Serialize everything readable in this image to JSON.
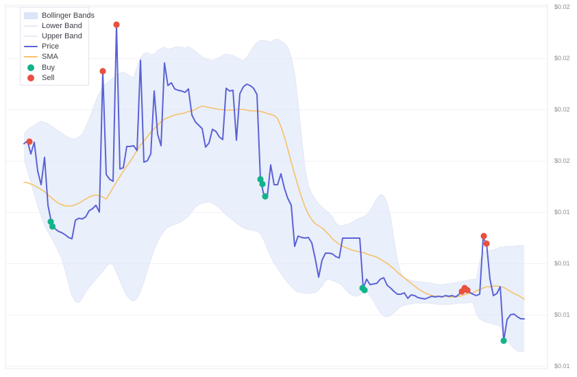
{
  "legend": {
    "items": [
      {
        "label": "Bollinger Bands",
        "swatch": "patch",
        "color": "#dbe5f8"
      },
      {
        "label": "Lower Band",
        "swatch": "line",
        "color": "#e7e9f3"
      },
      {
        "label": "Upper Band",
        "swatch": "line",
        "color": "#e7e9f3"
      },
      {
        "label": "Price",
        "swatch": "line",
        "color": "#5a61d4"
      },
      {
        "label": "SMA",
        "swatch": "line",
        "color": "#f7c065"
      },
      {
        "label": "Buy",
        "swatch": "dot",
        "color": "#13b389"
      },
      {
        "label": "Sell",
        "swatch": "dot",
        "color": "#e8503f"
      }
    ]
  },
  "y_axis": {
    "tick_values": [
      0.0225,
      0.02,
      0.0175,
      0.015,
      0.0125,
      0.01,
      0.0075,
      0.005
    ],
    "tick_labels": [
      "$0.02",
      "$0.02",
      "$0.02",
      "$0.02",
      "$0.01",
      "$0.01",
      "$0.01",
      "$0.01"
    ]
  },
  "colors": {
    "price": "#5a61d4",
    "sma": "#f7c065",
    "band_fill": "#dbe5f8",
    "band_edge": "#e3e7f4",
    "buy": "#13b389",
    "sell": "#e8503f",
    "grid": "#f2f2f7",
    "frame": "#e8e8ef",
    "tick_text": "#8b8b95"
  },
  "chart_data": {
    "type": "line",
    "title": "",
    "xlabel": "",
    "ylabel": "",
    "grid": true,
    "legend_position": "top-left",
    "xlim": [
      0,
      146
    ],
    "ylim": [
      0.0048833,
      0.0225833
    ],
    "series": [
      {
        "name": "Price",
        "values": [
          0.01585,
          0.015983,
          0.01535,
          0.015917,
          0.014517,
          0.01385,
          0.015183,
          0.01285,
          0.012017,
          0.011717,
          0.011583,
          0.011517,
          0.011417,
          0.011283,
          0.011217,
          0.012117,
          0.012217,
          0.012183,
          0.012283,
          0.012583,
          0.012683,
          0.01285,
          0.012517,
          0.019383,
          0.01435,
          0.014117,
          0.014017,
          0.02165,
          0.014617,
          0.014683,
          0.015717,
          0.015717,
          0.01575,
          0.015517,
          0.019917,
          0.01495,
          0.015017,
          0.01535,
          0.018417,
          0.016317,
          0.01575,
          0.019783,
          0.018683,
          0.018817,
          0.018517,
          0.01845,
          0.018417,
          0.01835,
          0.018517,
          0.01725,
          0.016917,
          0.01675,
          0.016583,
          0.015683,
          0.015883,
          0.01655,
          0.01645,
          0.016183,
          0.01605,
          0.01855,
          0.018417,
          0.01845,
          0.016017,
          0.018283,
          0.018617,
          0.01875,
          0.018683,
          0.01855,
          0.01825,
          0.014117,
          0.01335,
          0.01325,
          0.014817,
          0.01385,
          0.01385,
          0.014383,
          0.013683,
          0.013183,
          0.01285,
          0.01085,
          0.01135,
          0.011283,
          0.01125,
          0.011283,
          0.011017,
          0.01025,
          0.00935,
          0.010183,
          0.010517,
          0.010517,
          0.010483,
          0.01035,
          0.010283,
          0.01125,
          0.01125,
          0.01125,
          0.01125,
          0.01125,
          0.01125,
          0.008817,
          0.00925,
          0.008983,
          0.009017,
          0.00905,
          0.00925,
          0.009317,
          0.00895,
          0.008817,
          0.00865,
          0.008517,
          0.008517,
          0.008583,
          0.008317,
          0.008483,
          0.00845,
          0.00835,
          0.008317,
          0.008283,
          0.00835,
          0.008417,
          0.008383,
          0.008417,
          0.008383,
          0.00845,
          0.008417,
          0.00845,
          0.008383,
          0.008517,
          0.008717,
          0.00875,
          0.008617,
          0.008517,
          0.00845,
          0.008517,
          0.01125,
          0.010983,
          0.00925,
          0.00845,
          0.00855,
          0.008883,
          0.00625,
          0.007283,
          0.007517,
          0.00755,
          0.007417,
          0.007317,
          0.007317
        ]
      },
      {
        "name": "SMA",
        "values": [
          0.013983,
          0.01395,
          0.013883,
          0.013817,
          0.013717,
          0.013617,
          0.013517,
          0.01335,
          0.013217,
          0.013083,
          0.01295,
          0.012883,
          0.012817,
          0.012817,
          0.012817,
          0.012883,
          0.01295,
          0.01305,
          0.01315,
          0.01325,
          0.013317,
          0.01335,
          0.013317,
          0.01325,
          0.01315,
          0.013417,
          0.013717,
          0.013983,
          0.01425,
          0.014517,
          0.01475,
          0.014983,
          0.01525,
          0.015517,
          0.015783,
          0.015983,
          0.016183,
          0.016417,
          0.016583,
          0.01675,
          0.016917,
          0.01705,
          0.017117,
          0.017183,
          0.01725,
          0.017283,
          0.017317,
          0.01735,
          0.017417,
          0.01745,
          0.017517,
          0.017617,
          0.017683,
          0.01765,
          0.017617,
          0.017583,
          0.01755,
          0.017517,
          0.017517,
          0.017483,
          0.017483,
          0.017483,
          0.017517,
          0.017517,
          0.017517,
          0.017483,
          0.01745,
          0.01745,
          0.01745,
          0.017417,
          0.017383,
          0.017317,
          0.017283,
          0.017217,
          0.017083,
          0.016683,
          0.016183,
          0.015583,
          0.01495,
          0.01435,
          0.013783,
          0.01325,
          0.012783,
          0.012417,
          0.01215,
          0.01195,
          0.01185,
          0.01175,
          0.011583,
          0.011417,
          0.011217,
          0.011083,
          0.01095,
          0.01085,
          0.010783,
          0.010717,
          0.01065,
          0.010617,
          0.010583,
          0.01055,
          0.010483,
          0.010417,
          0.010383,
          0.010317,
          0.010217,
          0.010117,
          0.010017,
          0.009883,
          0.00975,
          0.009583,
          0.00945,
          0.009317,
          0.009183,
          0.00905,
          0.008917,
          0.008783,
          0.008683,
          0.008583,
          0.008517,
          0.00845,
          0.008417,
          0.008417,
          0.008417,
          0.008417,
          0.008383,
          0.008383,
          0.008383,
          0.008417,
          0.00845,
          0.008517,
          0.00855,
          0.008583,
          0.008683,
          0.00875,
          0.008817,
          0.008883,
          0.008883,
          0.008917,
          0.008917,
          0.008883,
          0.00885,
          0.00875,
          0.00865,
          0.00855,
          0.008483,
          0.008383,
          0.008283
        ]
      },
      {
        "name": "Upper Band",
        "values": [
          0.016317,
          0.016517,
          0.01665,
          0.01675,
          0.01685,
          0.01695,
          0.016883,
          0.016817,
          0.016717,
          0.016583,
          0.016483,
          0.016383,
          0.01625,
          0.01615,
          0.016083,
          0.016083,
          0.016183,
          0.016317,
          0.01665,
          0.01705,
          0.017483,
          0.01795,
          0.018317,
          0.018617,
          0.018783,
          0.018917,
          0.01905,
          0.019217,
          0.019283,
          0.01935,
          0.01925,
          0.01915,
          0.01905,
          0.019583,
          0.02005,
          0.02025,
          0.020283,
          0.020183,
          0.020217,
          0.020383,
          0.020483,
          0.02055,
          0.02045,
          0.020483,
          0.02055,
          0.020583,
          0.02055,
          0.020517,
          0.020583,
          0.020483,
          0.02035,
          0.020217,
          0.020083,
          0.019983,
          0.01995,
          0.019883,
          0.01995,
          0.02005,
          0.02015,
          0.020217,
          0.020183,
          0.02015,
          0.02005,
          0.01995,
          0.019883,
          0.02005,
          0.020317,
          0.020583,
          0.020783,
          0.020883,
          0.020883,
          0.02085,
          0.020783,
          0.020917,
          0.02095,
          0.02085,
          0.02075,
          0.02055,
          0.020083,
          0.01925,
          0.01785,
          0.016183,
          0.014683,
          0.013783,
          0.013417,
          0.01315,
          0.012917,
          0.01275,
          0.012617,
          0.012483,
          0.012283,
          0.011983,
          0.01185,
          0.01185,
          0.011917,
          0.01195,
          0.01205,
          0.01215,
          0.012217,
          0.012283,
          0.012383,
          0.012583,
          0.012883,
          0.013183,
          0.013383,
          0.013317,
          0.01295,
          0.012283,
          0.011183,
          0.01015,
          0.00955,
          0.009317,
          0.00925,
          0.009183,
          0.00915,
          0.009117,
          0.009117,
          0.009083,
          0.009083,
          0.00905,
          0.009017,
          0.008983,
          0.008983,
          0.009017,
          0.009017,
          0.00905,
          0.009083,
          0.009117,
          0.00915,
          0.009183,
          0.009217,
          0.00925,
          0.00925,
          0.010117,
          0.010583,
          0.01065,
          0.01065,
          0.010683,
          0.01075,
          0.010817,
          0.010817,
          0.01085,
          0.01085,
          0.01085,
          0.010883,
          0.010883,
          0.010883
        ]
      },
      {
        "name": "Lower Band",
        "values": [
          0.015117,
          0.01455,
          0.01395,
          0.013383,
          0.012817,
          0.012317,
          0.011883,
          0.01155,
          0.01125,
          0.01095,
          0.010617,
          0.01025,
          0.009683,
          0.009017,
          0.00845,
          0.00815,
          0.008117,
          0.008317,
          0.008617,
          0.00885,
          0.00905,
          0.00925,
          0.00945,
          0.00965,
          0.00985,
          0.010017,
          0.00995,
          0.009583,
          0.009183,
          0.008783,
          0.00845,
          0.00825,
          0.008183,
          0.008317,
          0.00865,
          0.009117,
          0.00965,
          0.010183,
          0.010683,
          0.011083,
          0.011383,
          0.011617,
          0.011783,
          0.01185,
          0.011917,
          0.011983,
          0.01205,
          0.012183,
          0.012317,
          0.01255,
          0.01275,
          0.012883,
          0.01295,
          0.012983,
          0.013017,
          0.01295,
          0.01285,
          0.012717,
          0.01255,
          0.012383,
          0.01225,
          0.012117,
          0.011983,
          0.01185,
          0.01175,
          0.011683,
          0.01165,
          0.011617,
          0.011583,
          0.01145,
          0.01115,
          0.01075,
          0.01035,
          0.010017,
          0.009783,
          0.009517,
          0.009283,
          0.009083,
          0.008883,
          0.008717,
          0.008617,
          0.008583,
          0.00855,
          0.00855,
          0.008583,
          0.008583,
          0.008717,
          0.008917,
          0.009183,
          0.00925,
          0.009183,
          0.009117,
          0.00905,
          0.008917,
          0.008717,
          0.00855,
          0.00845,
          0.008417,
          0.008483,
          0.008583,
          0.008617,
          0.00845,
          0.008183,
          0.007883,
          0.007617,
          0.00745,
          0.007417,
          0.007483,
          0.007617,
          0.007783,
          0.007917,
          0.007983,
          0.008017,
          0.00805,
          0.008083,
          0.008083,
          0.008083,
          0.008083,
          0.008083,
          0.00805,
          0.00805,
          0.008017,
          0.008017,
          0.008017,
          0.008017,
          0.00805,
          0.00805,
          0.008083,
          0.008083,
          0.008083,
          0.008117,
          0.008117,
          0.007583,
          0.007317,
          0.007217,
          0.00715,
          0.007117,
          0.00705,
          0.007017,
          0.00695,
          0.006617,
          0.006283,
          0.00605,
          0.005883,
          0.00575,
          0.005717,
          0.00575
        ]
      }
    ],
    "buy_signals": [
      {
        "x": 7.8,
        "y": 0.01205
      },
      {
        "x": 8.3,
        "y": 0.011817
      },
      {
        "x": 69.0,
        "y": 0.014117
      },
      {
        "x": 69.6,
        "y": 0.013883
      },
      {
        "x": 70.4,
        "y": 0.013283
      },
      {
        "x": 98.8,
        "y": 0.008817
      },
      {
        "x": 99.4,
        "y": 0.008717
      },
      {
        "x": 140.0,
        "y": 0.00625
      }
    ],
    "sell_signals": [
      {
        "x": 1.6,
        "y": 0.01595
      },
      {
        "x": 23.0,
        "y": 0.019383
      },
      {
        "x": 27.0,
        "y": 0.02165
      },
      {
        "x": 127.8,
        "y": 0.00865
      },
      {
        "x": 128.6,
        "y": 0.008817
      },
      {
        "x": 129.4,
        "y": 0.008717
      },
      {
        "x": 134.2,
        "y": 0.01135
      },
      {
        "x": 135.0,
        "y": 0.010983
      }
    ]
  }
}
